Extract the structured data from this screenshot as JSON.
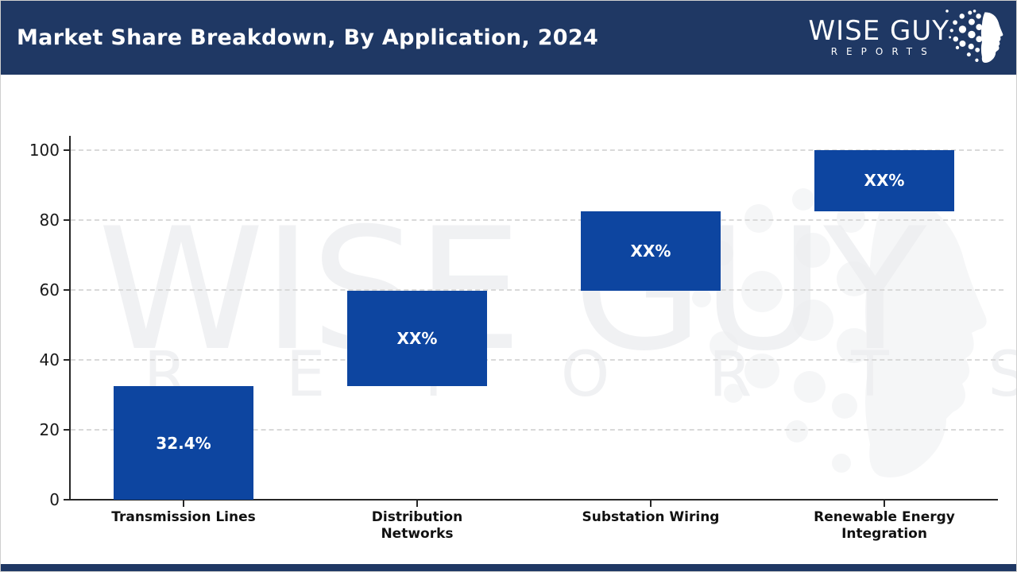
{
  "header": {
    "title": "Market Share Breakdown, By Application, 2024",
    "bg_color": "#1f3864",
    "logo": {
      "line1": "WISE GUY",
      "line2": "REPORTS"
    }
  },
  "watermark": {
    "line1": "WISE GUY",
    "line2": "R E P O R T S"
  },
  "chart_data": {
    "type": "bar",
    "subtype": "waterfall",
    "title": "Market Share Breakdown, By Application, 2024",
    "xlabel": "",
    "ylabel": "",
    "ylim": [
      0,
      100
    ],
    "yticks": [
      0,
      20,
      40,
      60,
      80,
      100
    ],
    "grid": "horizontal dashed",
    "legend": "none",
    "bar_color": "#0d45a0",
    "value_label_color": "#ffffff",
    "axis_color": "#262626",
    "gridline_color": "#d9d9d9",
    "categories": [
      "Transmission Lines",
      "Distribution Networks",
      "Substation Wiring",
      "Renewable Energy Integration"
    ],
    "segments": [
      {
        "label": "Transmission Lines",
        "label_lines": [
          "Transmission Lines"
        ],
        "start": 0,
        "end": 32.4,
        "value_label": "32.4%"
      },
      {
        "label": "Distribution Networks",
        "label_lines": [
          "Distribution",
          "Networks"
        ],
        "start": 32.4,
        "end": 59.8,
        "value_label": "XX%"
      },
      {
        "label": "Substation Wiring",
        "label_lines": [
          "Substation Wiring"
        ],
        "start": 59.8,
        "end": 82.6,
        "value_label": "XX%"
      },
      {
        "label": "Renewable Energy Integration",
        "label_lines": [
          "Renewable Energy",
          "Integration"
        ],
        "start": 82.6,
        "end": 100,
        "value_label": "XX%"
      }
    ]
  }
}
